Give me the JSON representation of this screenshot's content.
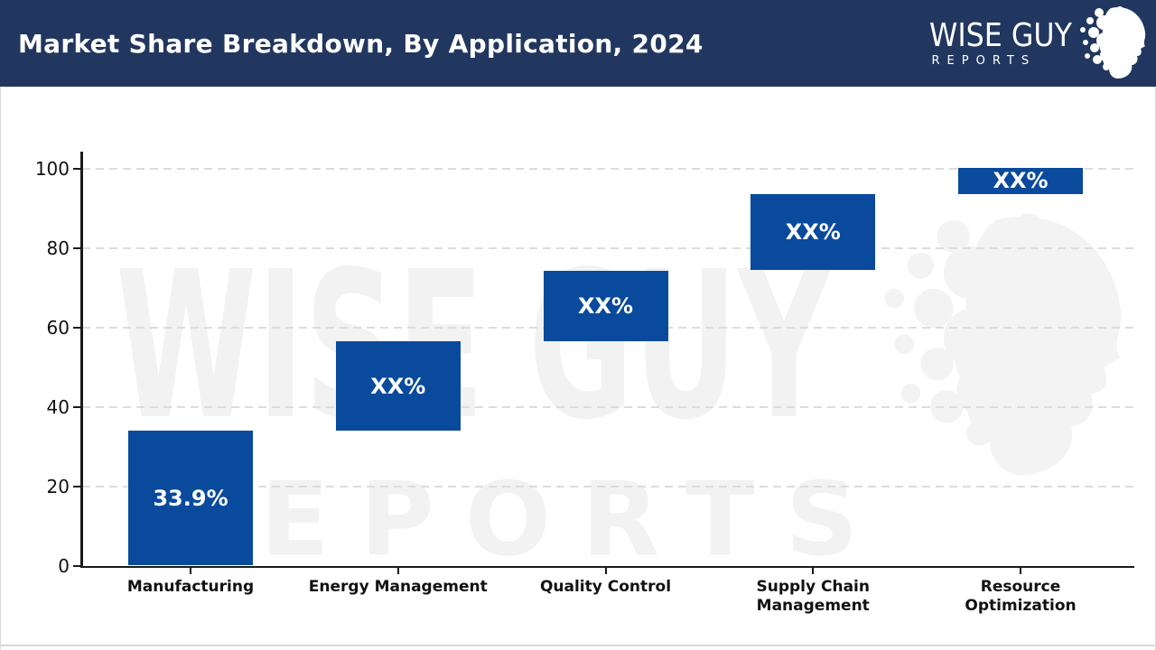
{
  "header": {
    "title": "Market Share Breakdown, By Application, 2024",
    "logo": {
      "wordmark": "WISE GUY",
      "subtext": "REPORTS"
    }
  },
  "watermark": {
    "wordmark": "WISE GUY",
    "subtext": "REPORTS"
  },
  "colors": {
    "header_bg": "#22375f",
    "bar": "#094a9d",
    "grid": "#dcdcdc",
    "axis": "#1a1a1a",
    "value_label": "#ffffff",
    "watermark": "#f2f2f2"
  },
  "chart_data": {
    "type": "bar",
    "subtype": "floating-waterfall",
    "title": "Market Share Breakdown, By Application, 2024",
    "xlabel": "",
    "ylabel": "",
    "ylim": [
      0,
      105
    ],
    "y_ticks": [
      0,
      20,
      40,
      60,
      80,
      100
    ],
    "grid": "horizontal-dashed",
    "legend": "none",
    "bar_color": "#094a9d",
    "value_label_color": "#ffffff",
    "categories": [
      "Manufacturing",
      "Energy Management",
      "Quality Control",
      "Supply Chain Management",
      "Resource Optimization"
    ],
    "segments": [
      {
        "category": "Manufacturing",
        "category_lines": [
          "Manufacturing"
        ],
        "start": 0,
        "end": 33.9,
        "label": "33.9%"
      },
      {
        "category": "Energy Management",
        "category_lines": [
          "Energy Management"
        ],
        "start": 33.9,
        "end": 56.5,
        "label": "XX%"
      },
      {
        "category": "Quality Control",
        "category_lines": [
          "Quality Control"
        ],
        "start": 56.5,
        "end": 74.3,
        "label": "XX%"
      },
      {
        "category": "Supply Chain Management",
        "category_lines": [
          "Supply Chain",
          "Management"
        ],
        "start": 74.5,
        "end": 93.6,
        "label": "XX%"
      },
      {
        "category": "Resource Optimization",
        "category_lines": [
          "Resource",
          "Optimization"
        ],
        "start": 93.6,
        "end": 100.2,
        "label": "XX%"
      }
    ]
  }
}
